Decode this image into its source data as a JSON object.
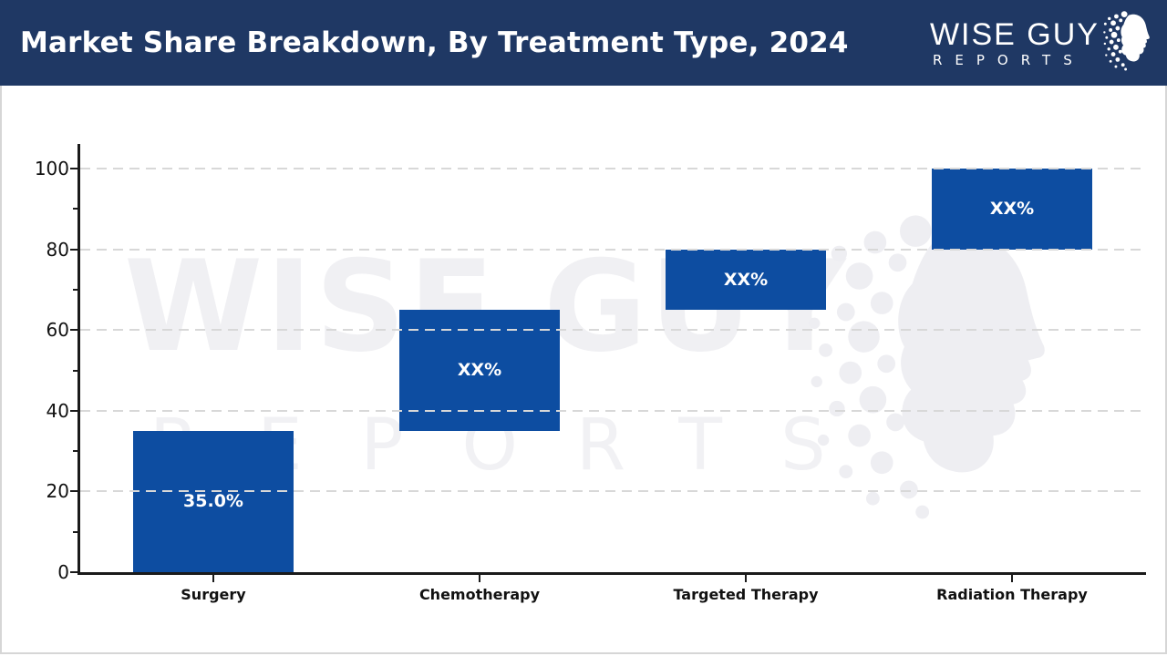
{
  "header": {
    "title": "Market Share Breakdown, By Treatment Type, 2024",
    "logo": {
      "primary": "WISE GUY",
      "secondary": "REPORTS"
    }
  },
  "watermark": {
    "primary": "WISE GUY",
    "secondary": "REPORTS"
  },
  "chart_data": {
    "type": "bar",
    "subtype": "waterfall",
    "title": "Market Share Breakdown, By Treatment Type, 2024",
    "categories": [
      "Surgery",
      "Chemotherapy",
      "Targeted Therapy",
      "Radiation Therapy"
    ],
    "series": [
      {
        "name": "Surgery",
        "start": 0,
        "end": 35,
        "value": 35,
        "label": "35.0%"
      },
      {
        "name": "Chemotherapy",
        "start": 35,
        "end": 65,
        "value": 30,
        "label": "XX%"
      },
      {
        "name": "Targeted Therapy",
        "start": 65,
        "end": 80,
        "value": 15,
        "label": "XX%"
      },
      {
        "name": "Radiation Therapy",
        "start": 80,
        "end": 100,
        "value": 20,
        "label": "XX%"
      }
    ],
    "xlabel": "",
    "ylabel": "",
    "ylim": [
      0,
      100
    ],
    "yticks": [
      0,
      20,
      40,
      60,
      80,
      100
    ],
    "grid": "horizontal-dashed",
    "legend": "none",
    "bar_color": "#0d4da1",
    "bar_label_color": "#ffffff"
  },
  "colors": {
    "header_bg": "#1f3864",
    "bar": "#0d4da1",
    "grid": "#d8d8d8",
    "axis": "#1a1a1a",
    "watermark": "#f0f0f3",
    "page_bg": "#ffffff",
    "frame_border": "#d6d6d6"
  }
}
